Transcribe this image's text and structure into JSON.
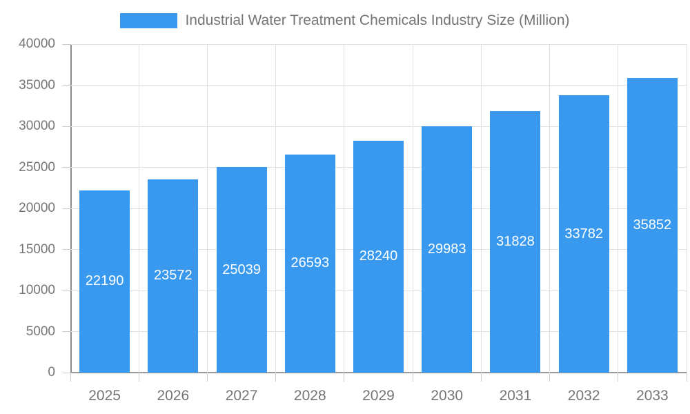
{
  "chart_data": {
    "type": "bar",
    "title": "Industrial Water Treatment Chemicals Industry Size (Million)",
    "categories": [
      "2025",
      "2026",
      "2027",
      "2028",
      "2029",
      "2030",
      "2031",
      "2032",
      "2033"
    ],
    "values": [
      22190,
      23572,
      25039,
      26593,
      28240,
      29983,
      31828,
      33782,
      35852
    ],
    "xlabel": "",
    "ylabel": "",
    "ylim": [
      0,
      40000
    ],
    "yticks": [
      0,
      5000,
      10000,
      15000,
      20000,
      25000,
      30000,
      35000,
      40000
    ],
    "grid": true,
    "legend_position": "top-center",
    "value_labels": "inside-center",
    "colors": {
      "bar": "#3899ee",
      "bar_value_text": "#ffffff",
      "axis_text": "#757575",
      "gridline": "#e0e0e0",
      "axis_line": "#8c8c8c",
      "tick_line": "#cccccc"
    }
  }
}
